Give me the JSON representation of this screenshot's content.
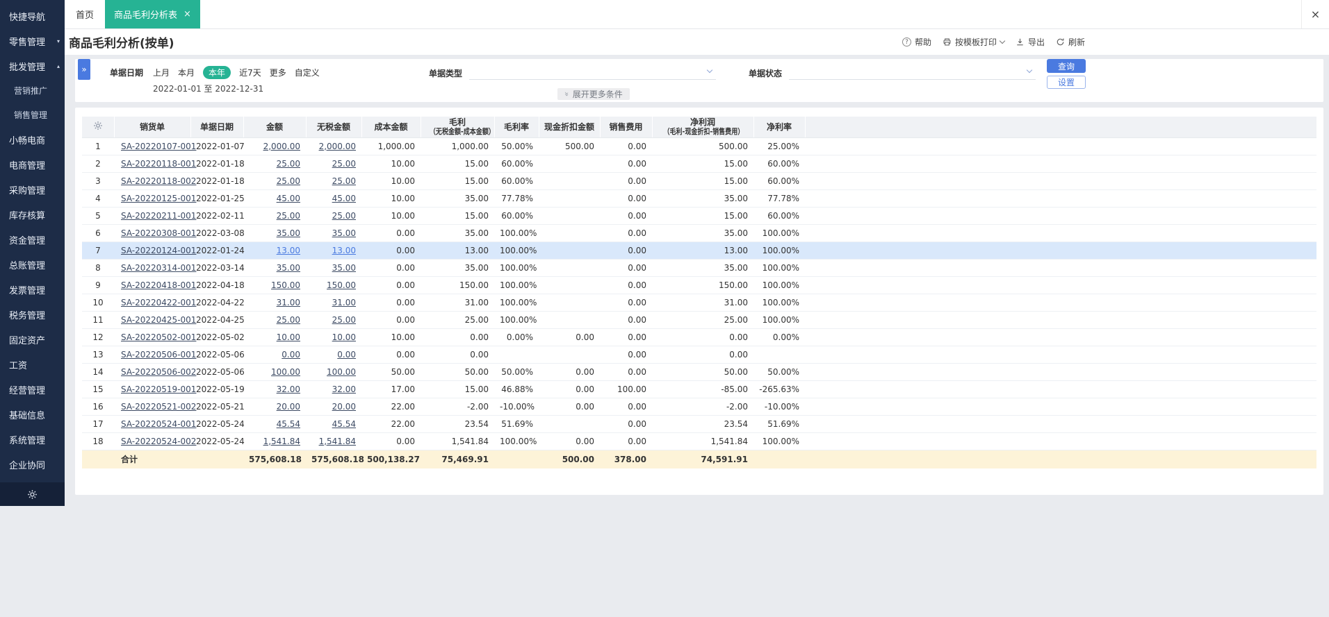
{
  "colors": {
    "accent_blue": "#4a7ae0",
    "accent_teal": "#26b394",
    "negative_red": "#e5413c",
    "selected_row_bg": "#d9e8fb",
    "total_row_bg": "#fdf3d8",
    "sidebar_bg": "#1d2c47"
  },
  "sidebar": {
    "items": [
      {
        "label": "快捷导航",
        "type": "top"
      },
      {
        "label": "零售管理",
        "type": "top",
        "arrow": "down"
      },
      {
        "label": "批发管理",
        "type": "top",
        "arrow": "up",
        "active": true
      },
      {
        "label": "营销推广",
        "type": "sub"
      },
      {
        "label": "销售管理",
        "type": "sub"
      },
      {
        "label": "小畅电商",
        "type": "top"
      },
      {
        "label": "电商管理",
        "type": "top"
      },
      {
        "label": "采购管理",
        "type": "top"
      },
      {
        "label": "库存核算",
        "type": "top"
      },
      {
        "label": "资金管理",
        "type": "top"
      },
      {
        "label": "总账管理",
        "type": "top"
      },
      {
        "label": "发票管理",
        "type": "top"
      },
      {
        "label": "税务管理",
        "type": "top"
      },
      {
        "label": "固定资产",
        "type": "top"
      },
      {
        "label": "工资",
        "type": "top"
      },
      {
        "label": "经营管理",
        "type": "top"
      },
      {
        "label": "基础信息",
        "type": "top"
      },
      {
        "label": "系统管理",
        "type": "top"
      },
      {
        "label": "企业协同",
        "type": "top"
      }
    ]
  },
  "tabs": {
    "home_label": "首页",
    "active_label": "商品毛利分析表"
  },
  "header": {
    "title": "商品毛利分析(按单)",
    "help": "帮助",
    "print": "按模板打印",
    "export": "导出",
    "refresh": "刷新"
  },
  "filters": {
    "date_label": "单据日期",
    "date_pills": [
      "上月",
      "本月",
      "本年",
      "近7天",
      "更多",
      "自定义"
    ],
    "active_pill": "本年",
    "date_range": "2022-01-01 至 2022-12-31",
    "doc_type_label": "单据类型",
    "doc_status_label": "单据状态",
    "query_button": "查询",
    "settings_button": "设置",
    "expand_more": "展开更多条件"
  },
  "table": {
    "columns": [
      {
        "title": "销货单",
        "sub": ""
      },
      {
        "title": "单据日期",
        "sub": ""
      },
      {
        "title": "金额",
        "sub": ""
      },
      {
        "title": "无税金额",
        "sub": ""
      },
      {
        "title": "成本金额",
        "sub": ""
      },
      {
        "title": "毛利",
        "sub": "（无税金额-成本金额）"
      },
      {
        "title": "毛利率",
        "sub": ""
      },
      {
        "title": "现金折扣金额",
        "sub": ""
      },
      {
        "title": "销售费用",
        "sub": ""
      },
      {
        "title": "净利润",
        "sub": "（毛利-现金折扣-销售费用）"
      },
      {
        "title": "净利率",
        "sub": ""
      }
    ],
    "rows": [
      {
        "no": "1",
        "order": "SA-20220107-001",
        "date": "2022-01-07",
        "amount": "2,000.00",
        "tax_free": "2,000.00",
        "cost": "1,000.00",
        "gross": "1,000.00",
        "gross_rate": "50.00%",
        "cash_discount": "500.00",
        "expense": "0.00",
        "net": "500.00",
        "net_rate": "25.00%"
      },
      {
        "no": "2",
        "order": "SA-20220118-001",
        "date": "2022-01-18",
        "amount": "25.00",
        "tax_free": "25.00",
        "cost": "10.00",
        "gross": "15.00",
        "gross_rate": "60.00%",
        "cash_discount": "",
        "expense": "0.00",
        "net": "15.00",
        "net_rate": "60.00%"
      },
      {
        "no": "3",
        "order": "SA-20220118-002",
        "date": "2022-01-18",
        "amount": "25.00",
        "tax_free": "25.00",
        "cost": "10.00",
        "gross": "15.00",
        "gross_rate": "60.00%",
        "cash_discount": "",
        "expense": "0.00",
        "net": "15.00",
        "net_rate": "60.00%"
      },
      {
        "no": "4",
        "order": "SA-20220125-001",
        "date": "2022-01-25",
        "amount": "45.00",
        "tax_free": "45.00",
        "cost": "10.00",
        "gross": "35.00",
        "gross_rate": "77.78%",
        "cash_discount": "",
        "expense": "0.00",
        "net": "35.00",
        "net_rate": "77.78%"
      },
      {
        "no": "5",
        "order": "SA-20220211-001",
        "date": "2022-02-11",
        "amount": "25.00",
        "tax_free": "25.00",
        "cost": "10.00",
        "gross": "15.00",
        "gross_rate": "60.00%",
        "cash_discount": "",
        "expense": "0.00",
        "net": "15.00",
        "net_rate": "60.00%"
      },
      {
        "no": "6",
        "order": "SA-20220308-001",
        "date": "2022-03-08",
        "amount": "35.00",
        "tax_free": "35.00",
        "cost": "0.00",
        "gross": "35.00",
        "gross_rate": "100.00%",
        "cash_discount": "",
        "expense": "0.00",
        "net": "35.00",
        "net_rate": "100.00%"
      },
      {
        "no": "7",
        "order": "SA-20220124-001",
        "date": "2022-01-24",
        "amount": "13.00",
        "tax_free": "13.00",
        "cost": "0.00",
        "gross": "13.00",
        "gross_rate": "100.00%",
        "cash_discount": "",
        "expense": "0.00",
        "net": "13.00",
        "net_rate": "100.00%",
        "selected": true
      },
      {
        "no": "8",
        "order": "SA-20220314-001",
        "date": "2022-03-14",
        "amount": "35.00",
        "tax_free": "35.00",
        "cost": "0.00",
        "gross": "35.00",
        "gross_rate": "100.00%",
        "cash_discount": "",
        "expense": "0.00",
        "net": "35.00",
        "net_rate": "100.00%"
      },
      {
        "no": "9",
        "order": "SA-20220418-001",
        "date": "2022-04-18",
        "amount": "150.00",
        "tax_free": "150.00",
        "cost": "0.00",
        "gross": "150.00",
        "gross_rate": "100.00%",
        "cash_discount": "",
        "expense": "0.00",
        "net": "150.00",
        "net_rate": "100.00%"
      },
      {
        "no": "10",
        "order": "SA-20220422-001",
        "date": "2022-04-22",
        "amount": "31.00",
        "tax_free": "31.00",
        "cost": "0.00",
        "gross": "31.00",
        "gross_rate": "100.00%",
        "cash_discount": "",
        "expense": "0.00",
        "net": "31.00",
        "net_rate": "100.00%"
      },
      {
        "no": "11",
        "order": "SA-20220425-001",
        "date": "2022-04-25",
        "amount": "25.00",
        "tax_free": "25.00",
        "cost": "0.00",
        "gross": "25.00",
        "gross_rate": "100.00%",
        "cash_discount": "",
        "expense": "0.00",
        "net": "25.00",
        "net_rate": "100.00%"
      },
      {
        "no": "12",
        "order": "SA-20220502-001",
        "date": "2022-05-02",
        "amount": "10.00",
        "tax_free": "10.00",
        "cost": "10.00",
        "gross": "0.00",
        "gross_rate": "0.00%",
        "cash_discount": "0.00",
        "expense": "0.00",
        "net": "0.00",
        "net_rate": "0.00%"
      },
      {
        "no": "13",
        "order": "SA-20220506-001",
        "date": "2022-05-06",
        "amount": "0.00",
        "tax_free": "0.00",
        "cost": "0.00",
        "gross": "0.00",
        "gross_rate": "",
        "cash_discount": "",
        "expense": "0.00",
        "net": "0.00",
        "net_rate": ""
      },
      {
        "no": "14",
        "order": "SA-20220506-002",
        "date": "2022-05-06",
        "amount": "100.00",
        "tax_free": "100.00",
        "cost": "50.00",
        "gross": "50.00",
        "gross_rate": "50.00%",
        "cash_discount": "0.00",
        "expense": "0.00",
        "net": "50.00",
        "net_rate": "50.00%"
      },
      {
        "no": "15",
        "order": "SA-20220519-001",
        "date": "2022-05-19",
        "amount": "32.00",
        "tax_free": "32.00",
        "cost": "17.00",
        "gross": "15.00",
        "gross_rate": "46.88%",
        "cash_discount": "0.00",
        "expense": "100.00",
        "net": "-85.00",
        "net_rate": "-265.63%"
      },
      {
        "no": "16",
        "order": "SA-20220521-002",
        "date": "2022-05-21",
        "amount": "20.00",
        "tax_free": "20.00",
        "cost": "22.00",
        "gross": "-2.00",
        "gross_rate": "-10.00%",
        "cash_discount": "0.00",
        "expense": "0.00",
        "net": "-2.00",
        "net_rate": "-10.00%"
      },
      {
        "no": "17",
        "order": "SA-20220524-001",
        "date": "2022-05-24",
        "amount": "45.54",
        "tax_free": "45.54",
        "cost": "22.00",
        "gross": "23.54",
        "gross_rate": "51.69%",
        "cash_discount": "",
        "expense": "0.00",
        "net": "23.54",
        "net_rate": "51.69%"
      },
      {
        "no": "18",
        "order": "SA-20220524-002",
        "date": "2022-05-24",
        "amount": "1,541.84",
        "tax_free": "1,541.84",
        "cost": "0.00",
        "gross": "1,541.84",
        "gross_rate": "100.00%",
        "cash_discount": "0.00",
        "expense": "0.00",
        "net": "1,541.84",
        "net_rate": "100.00%"
      }
    ],
    "total": {
      "label": "合计",
      "amount": "575,608.18",
      "tax_free": "575,608.18",
      "cost": "500,138.27",
      "gross": "75,469.91",
      "gross_rate": "",
      "cash_discount": "500.00",
      "expense": "378.00",
      "net": "74,591.91",
      "net_rate": ""
    }
  }
}
